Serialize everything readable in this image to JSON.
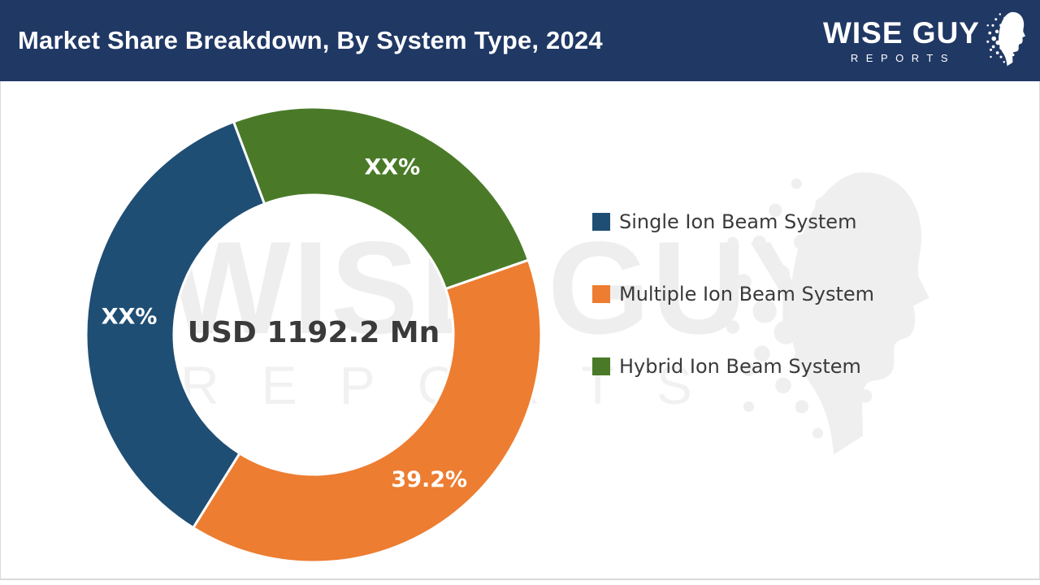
{
  "header": {
    "title": "Market Share Breakdown, By System Type, 2024",
    "brand": {
      "name_line1": "WISE GUY",
      "name_line2": "REPORTS"
    }
  },
  "watermark": {
    "line1": "WISE GUY",
    "line2": "REPORTS"
  },
  "chart_data": {
    "type": "pie",
    "subtype": "donut",
    "title": "Market Share Breakdown, By System Type, 2024",
    "center_label": "USD 1192.2 Mn",
    "legend_position": "right",
    "direction": "clockwise",
    "start_angle_deg": -20.6,
    "segments": [
      {
        "name": "Hybrid Ion Beam System",
        "value_pct": 25.4,
        "display_label": "XX%",
        "color": "#4a7a28"
      },
      {
        "name": "Multiple Ion Beam System",
        "value_pct": 39.2,
        "display_label": "39.2%",
        "color": "#ed7d31"
      },
      {
        "name": "Single Ion Beam System",
        "value_pct": 35.4,
        "display_label": "XX%",
        "color": "#1f4e74"
      }
    ]
  },
  "legend": {
    "items": [
      {
        "label": "Single Ion Beam System",
        "color": "#1f4e74"
      },
      {
        "label": "Multiple Ion Beam System",
        "color": "#ed7d31"
      },
      {
        "label": "Hybrid Ion Beam System",
        "color": "#4a7a28"
      }
    ]
  },
  "colors": {
    "header_background": "#203864",
    "center_label_text": "#3a3a3a",
    "slice_label_text": "#ffffff",
    "watermark": "#eeeeee",
    "divider": "#d9d9d9"
  }
}
